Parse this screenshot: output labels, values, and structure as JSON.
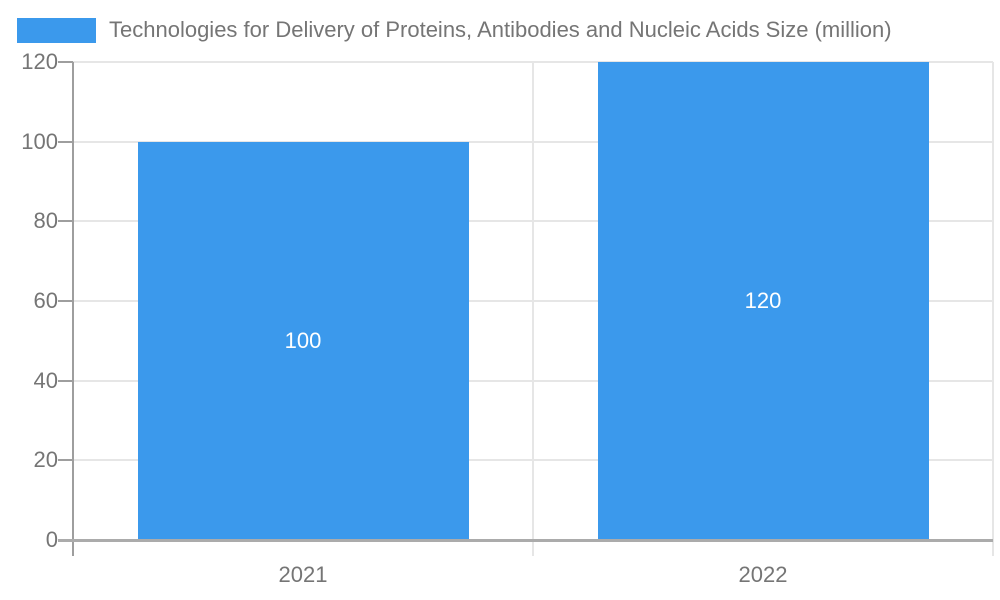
{
  "legend": {
    "label": "Technologies for Delivery of Proteins, Antibodies and Nucleic Acids Size (million)"
  },
  "colors": {
    "bar": "#3b99ec",
    "axis": "#9e9e9e",
    "baseline": "#ababab",
    "gridline": "#e6e6e6",
    "text": "#757575",
    "data_label": "#ffffff",
    "background": "#ffffff"
  },
  "chart_data": {
    "type": "bar",
    "title": "",
    "xlabel": "",
    "ylabel": "",
    "series_name": "Technologies for Delivery of Proteins, Antibodies and Nucleic Acids Size (million)",
    "categories": [
      "2021",
      "2022"
    ],
    "values": [
      100,
      120
    ],
    "data_labels": [
      "100",
      "120"
    ],
    "ylim": [
      0,
      120
    ],
    "yticks": [
      0,
      20,
      40,
      60,
      80,
      100,
      120
    ],
    "grid": true,
    "legend_position": "top-left",
    "bar_color": "#3b99ec"
  }
}
